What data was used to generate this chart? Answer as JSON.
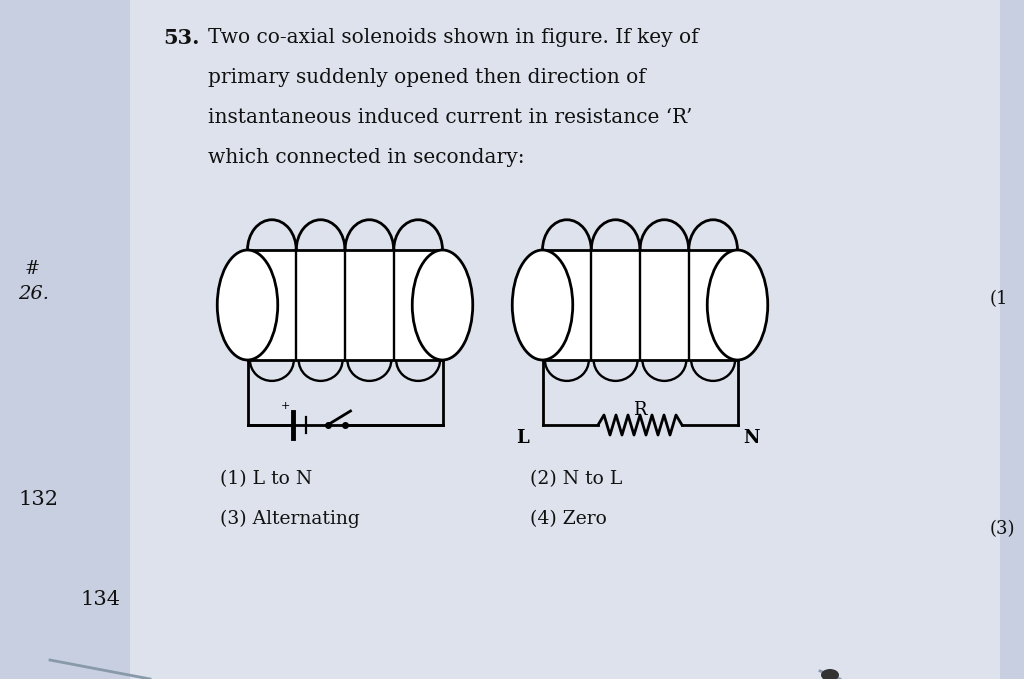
{
  "bg_color": "#c8cfe0",
  "page_color": "#d8dfe8",
  "text_color": "#111111",
  "question_number": "53.",
  "question_line1": "Two co-axial solenoids shown in figure. If key of",
  "question_line2": "primary suddenly opened then direction of",
  "question_line3": "instantaneous induced current in resistance ‘R’",
  "question_line4": "which connected in secondary:",
  "options": [
    "(1) L to N",
    "(2) N to L",
    "(3) Alternating",
    "(4) Zero"
  ],
  "side_symbol": "#",
  "side_number_top": "26.",
  "bottom_number1": "132",
  "bottom_number2": "134",
  "side_label_right1": "(1",
  "side_label_right2": "(3)"
}
